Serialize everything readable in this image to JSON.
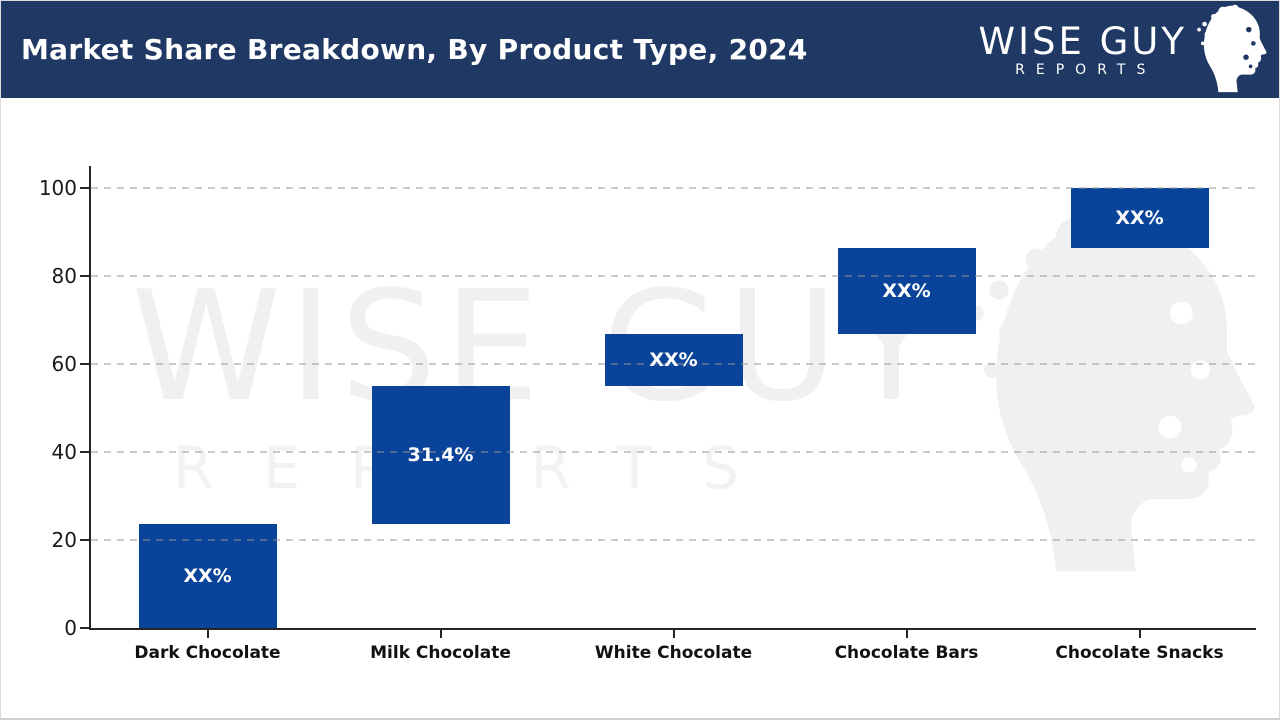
{
  "header": {
    "title": "Market Share Breakdown, By Product Type, 2024",
    "logo": {
      "line1": "WISE GUY",
      "line2": "REPORTS"
    }
  },
  "watermark": {
    "line1": "WISE GUY",
    "line2": "REPORTS"
  },
  "colors": {
    "header_bg": "#1f3864",
    "bar": "#0a449a",
    "bar_label": "#ffffff",
    "axis": "#262626",
    "grid": "#a6a6a6",
    "watermark": "#f0f0f3"
  },
  "chart_data": {
    "type": "bar",
    "subtype": "waterfall",
    "title": "Market Share Breakdown, By Product Type, 2024",
    "categories": [
      "Dark Chocolate",
      "Milk Chocolate",
      "White Chocolate",
      "Chocolate Bars",
      "Chocolate Snacks"
    ],
    "segments": [
      {
        "category": "Dark Chocolate",
        "start": 0,
        "end": 23.6,
        "label": "XX%"
      },
      {
        "category": "Milk Chocolate",
        "start": 23.6,
        "end": 55.0,
        "label": "31.4%"
      },
      {
        "category": "White Chocolate",
        "start": 55.0,
        "end": 66.8,
        "label": "XX%"
      },
      {
        "category": "Chocolate Bars",
        "start": 66.8,
        "end": 86.4,
        "label": "XX%"
      },
      {
        "category": "Chocolate Snacks",
        "start": 86.4,
        "end": 100.0,
        "label": "XX%"
      }
    ],
    "yticks": [
      0,
      20,
      40,
      60,
      80,
      100
    ],
    "ylim": [
      0,
      105
    ],
    "xlabel": "",
    "ylabel": "",
    "grid": {
      "horizontal": true,
      "style": "dashed",
      "on_top_of_bars": true
    },
    "legend": "none",
    "bar_color": "#0a449a"
  }
}
